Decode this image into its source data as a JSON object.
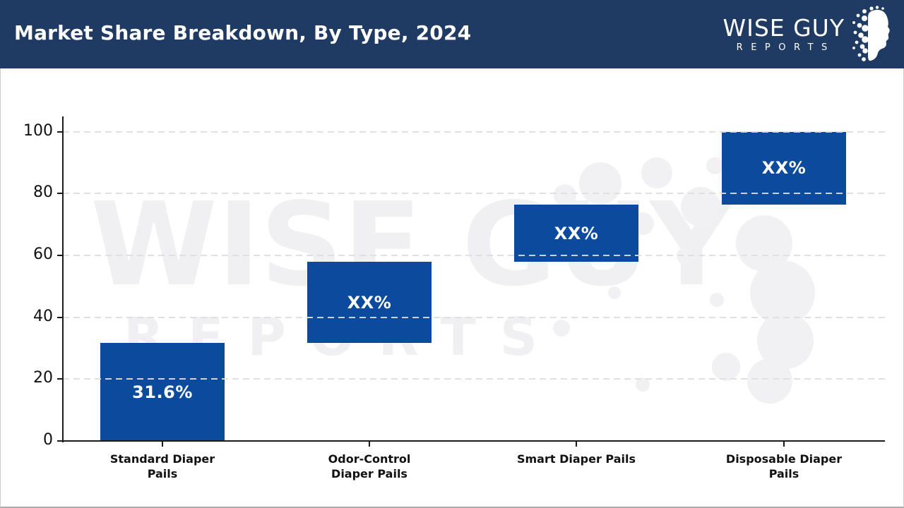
{
  "header": {
    "title": "Market Share Breakdown, By Type, 2024",
    "bg_color": "#1f3a63",
    "logo": {
      "line1": "WISE GUY",
      "line2": "REPORTS"
    }
  },
  "watermark": {
    "line1": "WISE GUY",
    "line2": "REPORTS",
    "color": "#f0f0f2"
  },
  "chart_data": {
    "type": "bar",
    "subtype": "waterfall",
    "title": "Market Share Breakdown, By Type, 2024",
    "xlabel": "",
    "ylabel": "",
    "ylim": [
      0,
      105
    ],
    "yticks": [
      0,
      20,
      40,
      60,
      80,
      100
    ],
    "grid": "dashed-horizontal",
    "legend": "none",
    "categories": [
      {
        "label": "Standard Diaper Pails",
        "lines": [
          "Standard Diaper",
          "Pails"
        ]
      },
      {
        "label": "Odor-Control Diaper Pails",
        "lines": [
          "Odor-Control",
          "Diaper Pails"
        ]
      },
      {
        "label": "Smart Diaper Pails",
        "lines": [
          "Smart Diaper Pails"
        ]
      },
      {
        "label": "Disposable Diaper Pails",
        "lines": [
          "Disposable Diaper",
          "Pails"
        ]
      }
    ],
    "segments": [
      {
        "category": "Standard Diaper Pails",
        "start": 0,
        "end": 31.6,
        "label": "31.6%"
      },
      {
        "category": "Odor-Control Diaper Pails",
        "start": 31.6,
        "end": 57.9,
        "label": "XX%"
      },
      {
        "category": "Smart Diaper Pails",
        "start": 57.9,
        "end": 76.3,
        "label": "XX%"
      },
      {
        "category": "Disposable Diaper Pails",
        "start": 76.3,
        "end": 100,
        "label": "XX%"
      }
    ],
    "colors": {
      "bar": "#0b4a9d",
      "bar_label": "#ffffff",
      "grid": "rgba(222,222,222,0.92)",
      "axis": "#1a1a1a",
      "tick_text": "#111111"
    }
  }
}
